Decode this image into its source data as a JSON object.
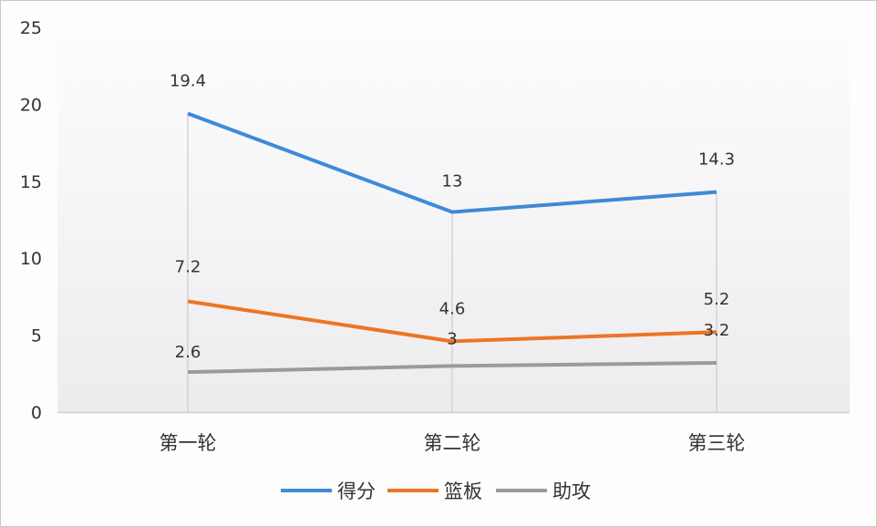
{
  "chart_data": {
    "type": "line",
    "title": "",
    "xlabel": "",
    "ylabel": "",
    "categories": [
      "第一轮",
      "第二轮",
      "第三轮"
    ],
    "series": [
      {
        "name": "得分",
        "color": "#3f8ad8",
        "values": [
          19.4,
          13,
          14.3
        ]
      },
      {
        "name": "篮板",
        "color": "#ee7424",
        "values": [
          7.2,
          4.6,
          5.2
        ]
      },
      {
        "name": "助攻",
        "color": "#9a9a9a",
        "values": [
          2.6,
          3,
          3.2
        ]
      }
    ],
    "ylim": [
      0,
      25
    ],
    "yticks": [
      0,
      5,
      10,
      15,
      20,
      25
    ],
    "data_labels": true,
    "grid": "vertical drop lines at categories",
    "legend_position": "bottom"
  },
  "yticks_text": [
    "0",
    "5",
    "10",
    "15",
    "20",
    "25"
  ],
  "legend": [
    {
      "label": "得分",
      "color": "#3f8ad8"
    },
    {
      "label": "篮板",
      "color": "#ee7424"
    },
    {
      "label": "助攻",
      "color": "#9a9a9a"
    }
  ]
}
